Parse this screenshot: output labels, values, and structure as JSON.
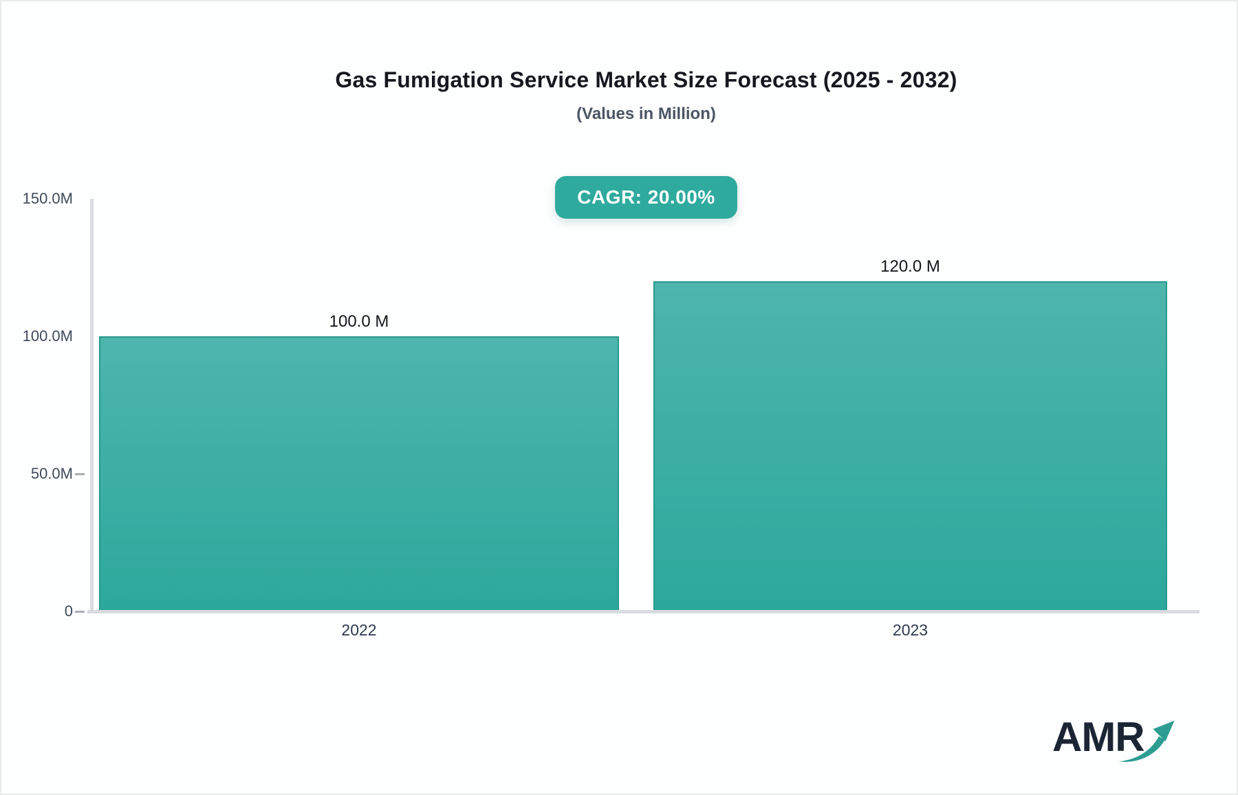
{
  "page": {
    "title": "Gas Fumigation Service Market Size Forecast (2025 - 2032)",
    "subtitle": "(Values in Million)",
    "cagr_label": "CAGR: 20.00%"
  },
  "axes": {
    "y_ticks": [
      {
        "label": "150.0M",
        "value": 150
      },
      {
        "label": "100.0M",
        "value": 100
      },
      {
        "label": "50.0M",
        "value": 50
      },
      {
        "label": "0",
        "value": 0
      }
    ]
  },
  "chart_data": {
    "type": "bar",
    "title": "Gas Fumigation Service Market Size Forecast (2025 - 2032)",
    "subtitle": "(Values in Million)",
    "unit": "Million",
    "cagr_pct": 20.0,
    "categories": [
      "2022",
      "2023"
    ],
    "values": [
      100.0,
      120.0
    ],
    "bar_labels": [
      "100.0 M",
      "120.0 M"
    ],
    "ylim": [
      0,
      150
    ],
    "y_tick_labels": [
      "0",
      "50.0M",
      "100.0M",
      "150.0M"
    ],
    "grid": false,
    "legend": false,
    "bar_color_top": "#4eb5ad",
    "bar_color_bottom": "#2ca89c"
  },
  "branding": {
    "logo_text": "AMR"
  },
  "colors": {
    "accent_teal": "#2ca89c",
    "badge_background": "#2faa9e",
    "bar_border": "#27998e",
    "axis_line": "#d8dbe0",
    "title_text": "#17171f",
    "subtitle_text": "#4b5563",
    "axis_label_text": "#3f4a5a",
    "category_label_text": "#2f3a50",
    "logo_text": "#1b2534",
    "logo_arrow": "#2d9d92",
    "background": "#fdfefe"
  }
}
